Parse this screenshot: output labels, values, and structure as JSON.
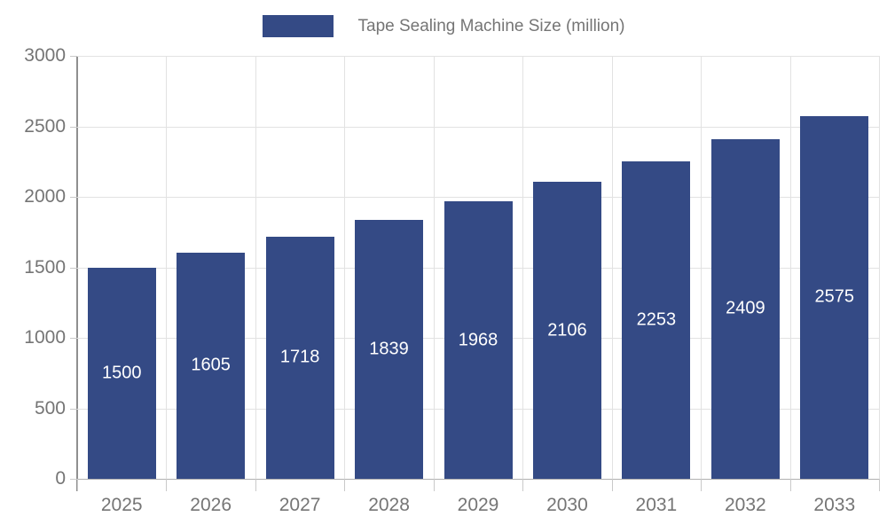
{
  "legend": {
    "label": "Tape Sealing Machine Size (million)"
  },
  "colors": {
    "bar": "#344a85",
    "legend_text": "#757575",
    "axis_text": "#757575",
    "gridline": "#e2e2e2",
    "axis_line": "#8f8f8f",
    "bar_label_text": "#ffffff"
  },
  "chart_data": {
    "type": "bar",
    "title": "Tape Sealing Machine Size (million)",
    "categories": [
      "2025",
      "2026",
      "2027",
      "2028",
      "2029",
      "2030",
      "2031",
      "2032",
      "2033"
    ],
    "series": [
      {
        "name": "Tape Sealing Machine Size (million)",
        "values": [
          1500,
          1605,
          1718,
          1839,
          1968,
          2106,
          2253,
          2409,
          2575
        ]
      }
    ],
    "bar_labels": [
      1500,
      1605,
      1718,
      1839,
      1968,
      2106,
      2253,
      2409,
      2575
    ],
    "xlabel": "",
    "ylabel": "",
    "ylim": [
      0,
      3000
    ],
    "yticks": [
      0,
      500,
      1000,
      1500,
      2000,
      2500,
      3000
    ],
    "grid": true,
    "legend_position": "top"
  }
}
